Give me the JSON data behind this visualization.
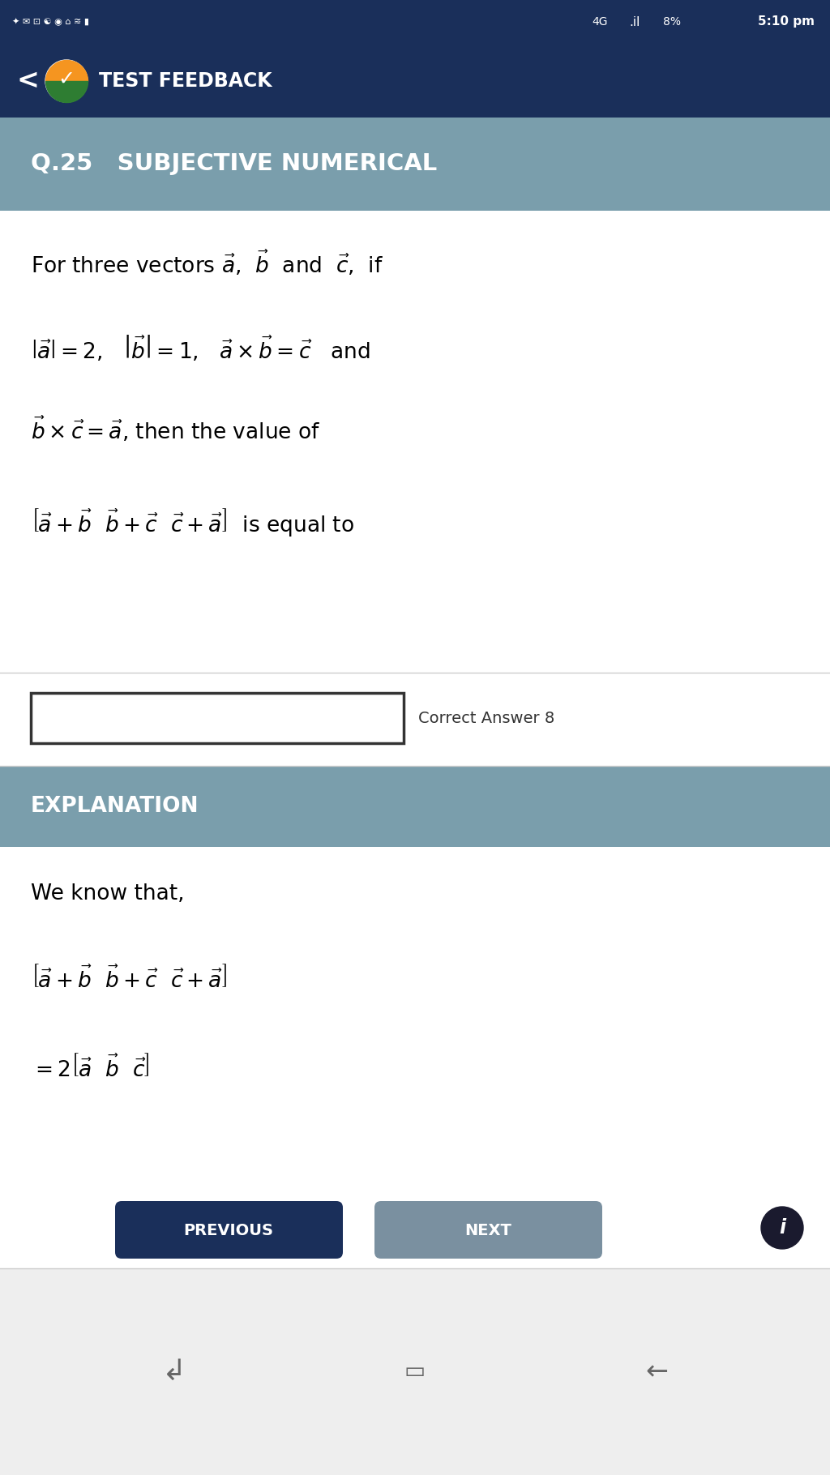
{
  "header_bg": "#1a2f5a",
  "header_text": "TEST FEEDBACK",
  "section_bg": "#7a9eac",
  "section_text": "Q.25   SUBJECTIVE NUMERICAL",
  "body_bg": "#ffffff",
  "correct_answer_text": "Correct Answer 8",
  "explanation_bg": "#7a9eac",
  "explanation_text": "EXPLANATION",
  "btn_dark": "#1a2f5a",
  "btn_grey": "#7a90a0",
  "btn_prev": "PREVIOUS",
  "btn_next": "NEXT",
  "nav_bg": "#f0f0f0",
  "logo_orange": "#f59520",
  "logo_green": "#2e7d32"
}
